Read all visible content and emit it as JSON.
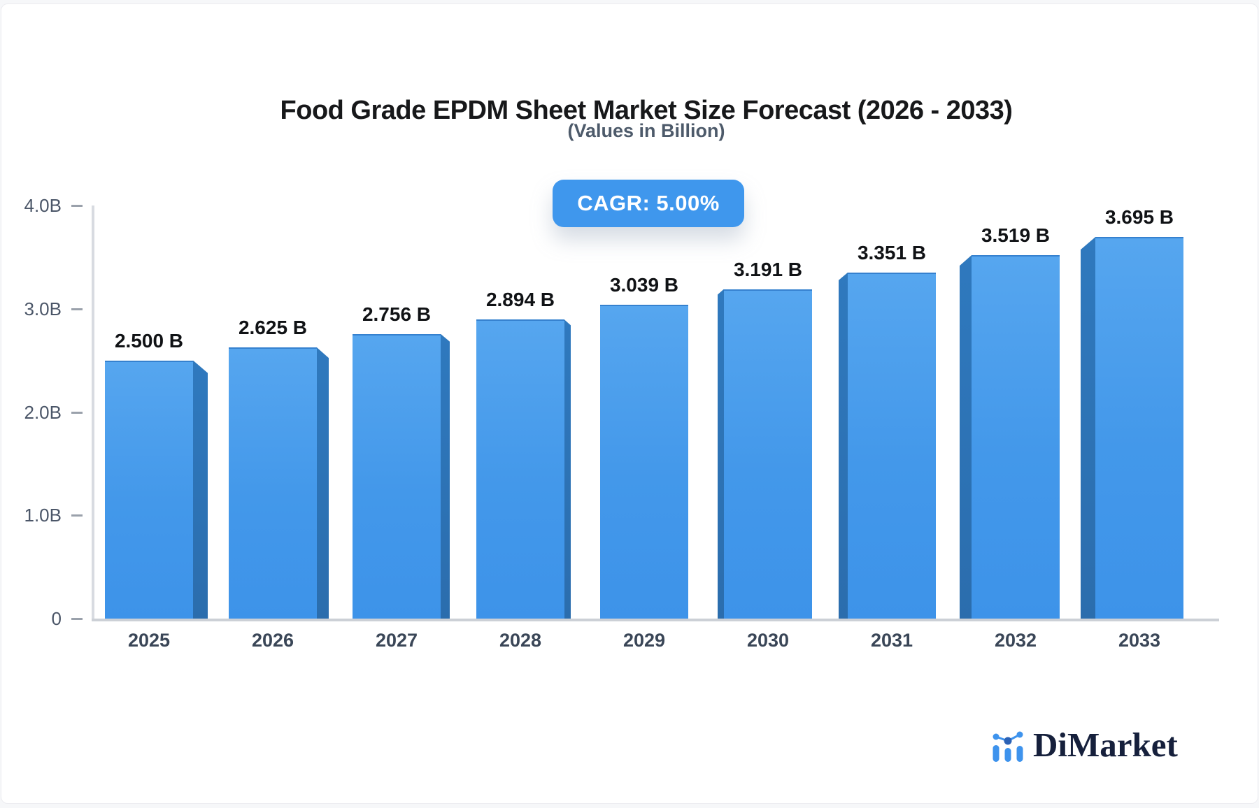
{
  "title": "Food Grade EPDM Sheet Market Size Forecast (2026 - 2033)",
  "subtitle": "(Values in Billion)",
  "cagr_badge": "CAGR: 5.00%",
  "brand": {
    "name": "DiMarket",
    "logo_icon": "bar-chart-with-trend-dots"
  },
  "colors": {
    "badge_bg": "#3f97ed",
    "bar_face_top": "#56a6ef",
    "bar_face_bottom": "#3d93e9",
    "bar_side": "#2d74b6",
    "axis": "#d8dbe1",
    "baseline": "#ccd0d6",
    "title_text": "#17181a",
    "tick_text": "#4b5668",
    "year_text": "#3a4657",
    "brand_navy": "#16203c",
    "logo_blue": "#3e93ed"
  },
  "chart_data": {
    "type": "bar",
    "title": "Food Grade EPDM Sheet Market Size Forecast (2026 - 2033)",
    "subtitle": "(Values in Billion)",
    "annotation": "CAGR: 5.00%",
    "categories": [
      "2025",
      "2026",
      "2027",
      "2028",
      "2029",
      "2030",
      "2031",
      "2032",
      "2033"
    ],
    "values": [
      2.5,
      2.625,
      2.756,
      2.894,
      3.039,
      3.191,
      3.351,
      3.519,
      3.695
    ],
    "value_labels": [
      "2.500 B",
      "2.625 B",
      "2.756 B",
      "2.894 B",
      "3.039 B",
      "3.191 B",
      "3.351 B",
      "3.519 B",
      "3.695 B"
    ],
    "xlabel": "",
    "ylabel": "",
    "ylim": [
      0,
      4.0
    ],
    "yticks": [
      0,
      1.0,
      2.0,
      3.0,
      4.0
    ],
    "ytick_labels": [
      "0",
      "1.0B",
      "2.0B",
      "3.0B",
      "4.0B"
    ],
    "grid": false,
    "legend": false,
    "bar_style": "3d-center-perspective"
  }
}
